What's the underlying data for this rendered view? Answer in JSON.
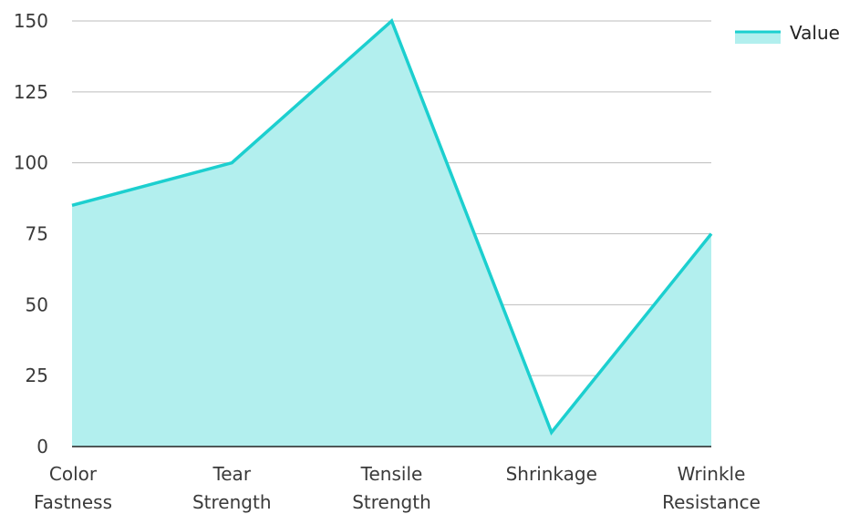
{
  "chart_data": {
    "type": "area",
    "categories": [
      [
        "Color",
        "Fastness"
      ],
      [
        "Tear",
        "Strength"
      ],
      [
        "Tensile",
        "Strength"
      ],
      [
        "Shrinkage"
      ],
      [
        "Wrinkle",
        "Resistance"
      ]
    ],
    "series": [
      {
        "name": "Value",
        "values": [
          85,
          100,
          150,
          5,
          75
        ]
      }
    ],
    "yticks": [
      0,
      25,
      50,
      75,
      100,
      125,
      150
    ],
    "ylim": [
      0,
      150
    ],
    "grid": true,
    "legend": "top-right",
    "colors": {
      "line": "#1ccfcf",
      "fill": "#b2efee",
      "grid": "#bdbdbd",
      "axis": "#222222"
    }
  }
}
